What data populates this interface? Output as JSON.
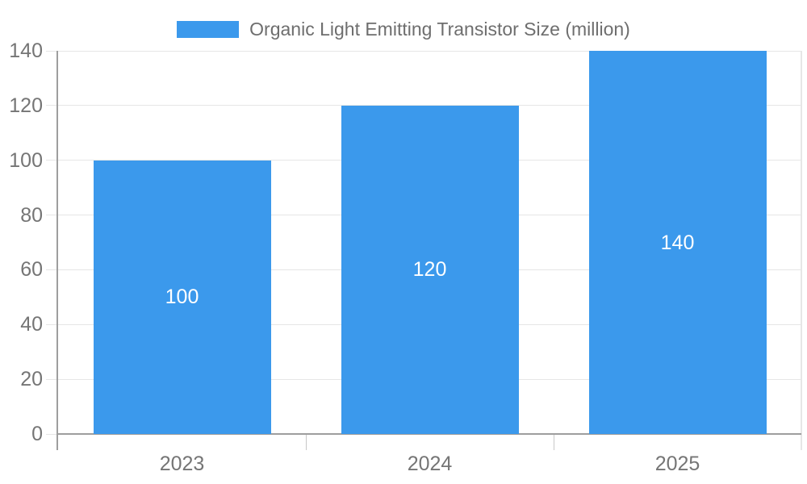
{
  "chart_data": {
    "type": "bar",
    "title": "Organic Light Emitting Transistor Size (million)",
    "legend_entries": [
      "Organic Light Emitting Transistor Size (million)"
    ],
    "legend_position": "top",
    "categories": [
      "2023",
      "2024",
      "2025"
    ],
    "series": [
      {
        "name": "Organic Light Emitting Transistor Size (million)",
        "values": [
          100,
          120,
          140
        ],
        "value_labels": [
          "100",
          "120",
          "140"
        ]
      }
    ],
    "xlabel": "",
    "ylabel": "",
    "ylim": [
      0,
      140
    ],
    "yticks": [
      0,
      20,
      40,
      60,
      80,
      100,
      120,
      140
    ],
    "ytick_labels": [
      "0",
      "20",
      "40",
      "60",
      "80",
      "100",
      "120",
      "140"
    ],
    "grid": true,
    "colors": {
      "bar": "#3b99ec",
      "grid": "#e6e6e6",
      "axis": "#9e9e9e",
      "tick_label": "#757575",
      "value_label": "#ffffff",
      "legend_text": "#6e6e6e"
    }
  }
}
